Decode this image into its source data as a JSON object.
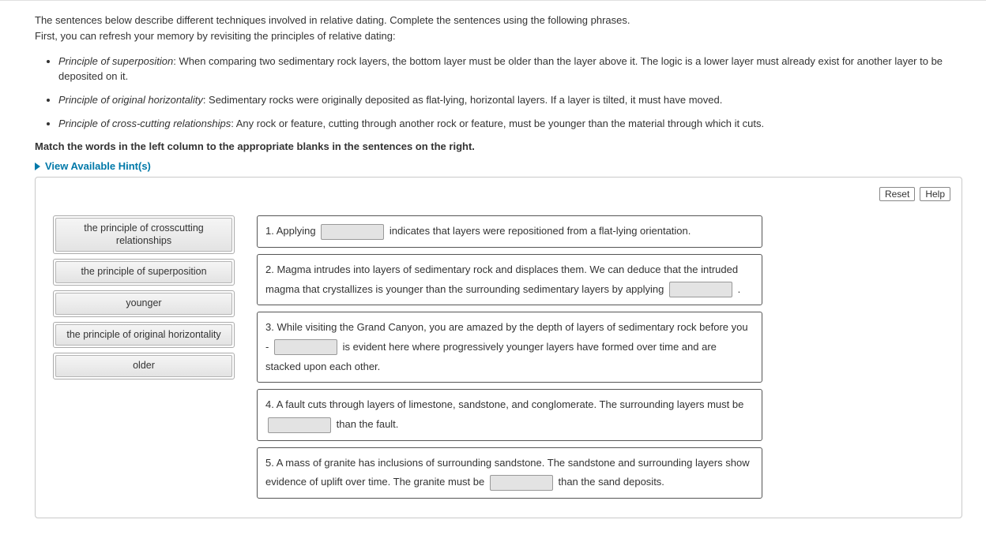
{
  "intro": {
    "line1": "The sentences below describe different techniques involved in relative dating. Complete the sentences using the following phrases.",
    "line2": "First, you can refresh your memory by revisiting the principles of relative dating:"
  },
  "principles": [
    {
      "name": "Principle of superposition",
      "desc": ": When comparing two sedimentary rock layers, the bottom layer must be older than the layer above it. The logic is a lower layer must already exist for another layer to be deposited on it."
    },
    {
      "name": "Principle of original horizontality",
      "desc": ": Sedimentary rocks were originally deposited as flat-lying, horizontal layers. If a layer is tilted, it must have moved."
    },
    {
      "name": "Principle of cross-cutting relationships",
      "desc": ": Any rock or feature, cutting through another rock or feature, must be younger than the material through which it cuts."
    }
  ],
  "instruction": "Match the words in the left column to the appropriate blanks in the sentences on the right.",
  "hints_label": "View Available Hint(s)",
  "toolbar": {
    "reset": "Reset",
    "help": "Help"
  },
  "bank": [
    "the principle of crosscutting relationships",
    "the principle of superposition",
    "younger",
    "the principle of original horizontality",
    "older"
  ],
  "sentences": {
    "s1a": "1. Applying ",
    "s1b": " indicates that layers were repositioned from a flat-lying orientation.",
    "s2a": "2. Magma intrudes into layers of sedimentary rock and displaces them. We can deduce that the intruded magma that crystallizes is younger than the surrounding sedimentary layers by applying ",
    "s2b": " .",
    "s3a": "3. While visiting the Grand Canyon, you are amazed by the depth of layers of sedimentary rock before you - ",
    "s3b": " is evident here where progressively younger layers have formed over time and are stacked upon each other.",
    "s4a": "4. A fault cuts through layers of limestone, sandstone, and conglomerate. The surrounding layers must be ",
    "s4b": " than the fault.",
    "s5a": "5. A mass of granite has inclusions of surrounding sandstone. The sandstone and surrounding layers show evidence of uplift over time. The granite must be ",
    "s5b": " than the sand deposits."
  }
}
